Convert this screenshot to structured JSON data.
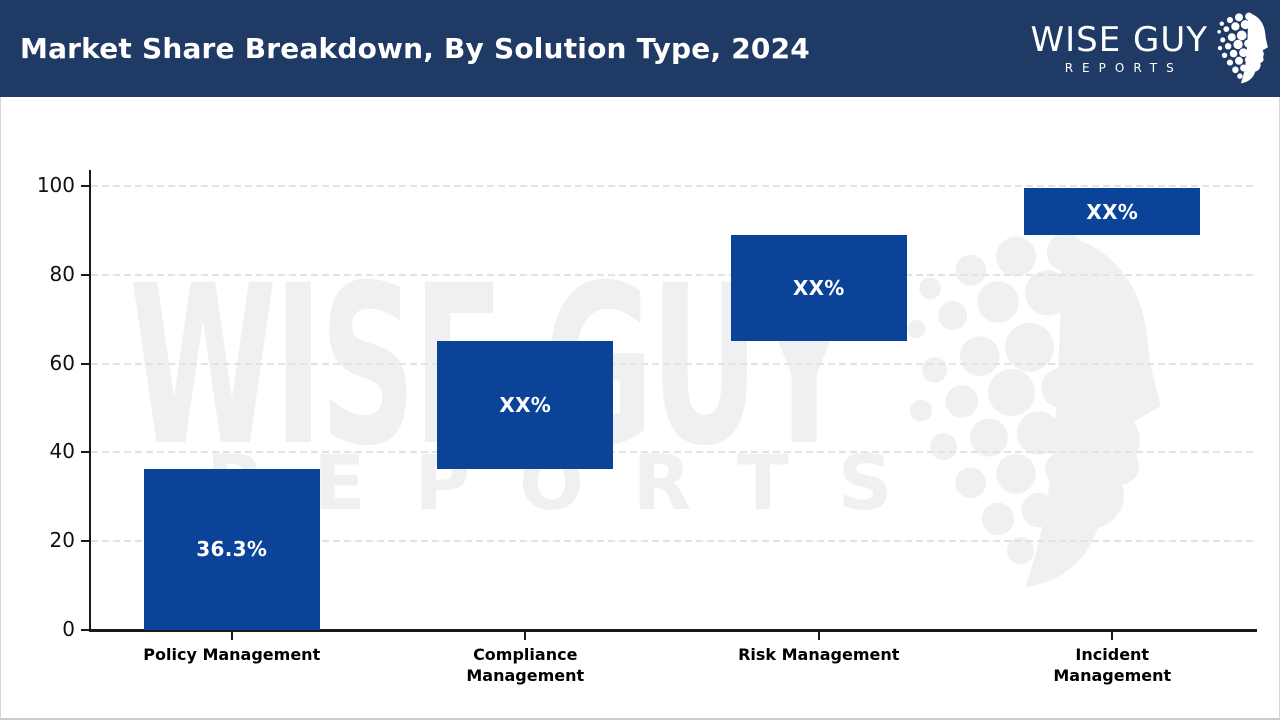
{
  "header": {
    "title": "Market Share Breakdown, By Solution Type, 2024",
    "logo": {
      "name": "WISE GUY",
      "tagline": "REPORTS"
    }
  },
  "watermark": {
    "name": "WISE GUY",
    "tagline": "REPORTS"
  },
  "colors": {
    "header_bg": "#203a66",
    "title_text": "#ffffff",
    "bar": "#0a4397",
    "gridline": "#e3e3e3",
    "axis": "#1a1a1a",
    "watermark": "#f0f0f3"
  },
  "chart_data": {
    "type": "bar",
    "subtype": "waterfall-stacked",
    "title": "Market Share Breakdown, By Solution Type, 2024",
    "categories": [
      [
        "Policy Management"
      ],
      [
        "Compliance",
        "Management"
      ],
      [
        "Risk Management"
      ],
      [
        "Incident",
        "Management"
      ]
    ],
    "segments": [
      {
        "category": "Policy Management",
        "start": 0,
        "end": 36.3,
        "label": "36.3%"
      },
      {
        "category": "Compliance Management",
        "start": 36.3,
        "end": 65,
        "label": "XX%"
      },
      {
        "category": "Risk Management",
        "start": 65,
        "end": 89,
        "label": "XX%"
      },
      {
        "category": "Incident Management",
        "start": 89,
        "end": 99.5,
        "label": "XX%"
      }
    ],
    "y_ticks": [
      0,
      20,
      40,
      60,
      80,
      100
    ],
    "ylim": [
      0,
      103
    ],
    "xlabel": "",
    "ylabel": "",
    "grid": "horizontal-dashed",
    "legend": "none",
    "bar_color": "#0a4397",
    "value_label_color": "#ffffff"
  }
}
